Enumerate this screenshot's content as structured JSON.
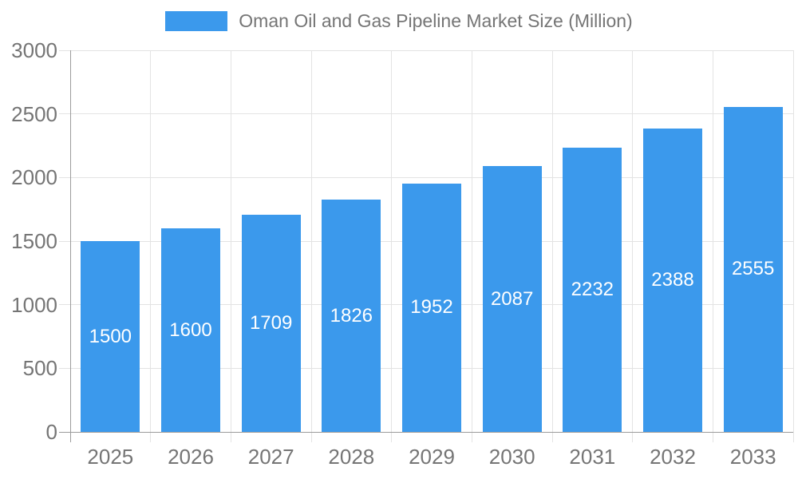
{
  "legend": {
    "label": "Oman Oil and Gas Pipeline Market Size (Million)"
  },
  "chart_data": {
    "type": "bar",
    "title": "Oman Oil and Gas Pipeline Market Size (Million)",
    "categories": [
      "2025",
      "2026",
      "2027",
      "2028",
      "2029",
      "2030",
      "2031",
      "2032",
      "2033"
    ],
    "values": [
      1500,
      1600,
      1709,
      1826,
      1952,
      2087,
      2232,
      2388,
      2555
    ],
    "xlabel": "",
    "ylabel": "",
    "ylim": [
      0,
      3000
    ],
    "yticks": [
      0,
      500,
      1000,
      1500,
      2000,
      2500,
      3000
    ],
    "grid": true,
    "legend_position": "top-center",
    "bar_color": "#3B99EC",
    "bar_label_color": "#FFFFFF",
    "axis_text_color": "#757575",
    "grid_color": "#E3E3E3",
    "axis_line_color": "#9B9B9B"
  }
}
